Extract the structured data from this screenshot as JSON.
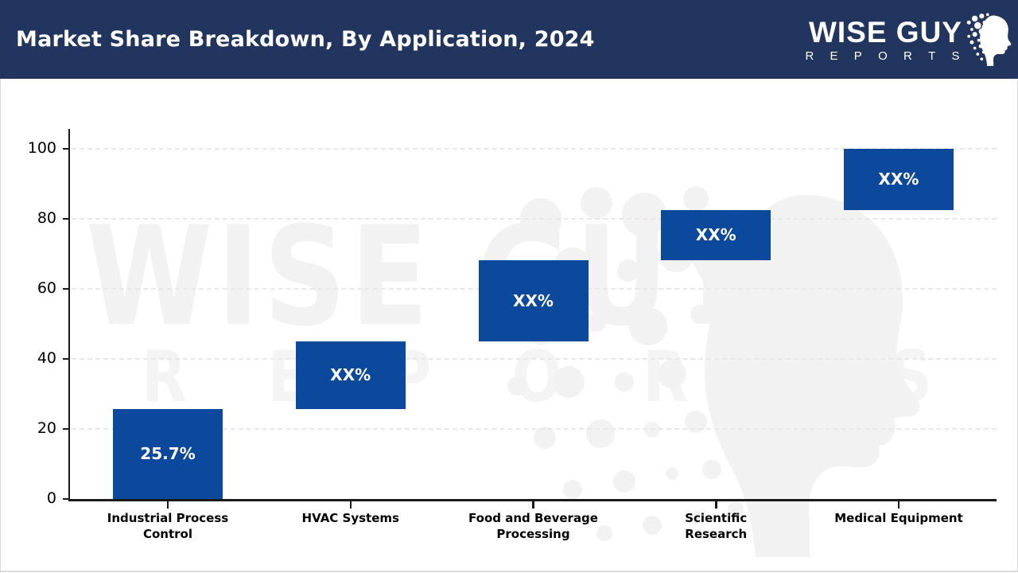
{
  "header": {
    "title": "Market Share Breakdown, By Application, 2024",
    "logo": {
      "line1": "WISE GUY",
      "line2": "REPORTS"
    }
  },
  "watermark": {
    "line1": "WISE GUY",
    "line2": "REPORTS"
  },
  "colors": {
    "header_bg": "#21355f",
    "bar_blue": "#0c499d",
    "axis": "#1a1a1a",
    "gridline": "#e8e8e8",
    "watermark": "#f2f2f2",
    "bar_label": "#ffffff"
  },
  "chart_data": {
    "type": "bar",
    "subtype": "waterfall",
    "title": "Market Share Breakdown, By Application, 2024",
    "xlabel": "",
    "ylabel": "",
    "ylim": [
      0,
      105
    ],
    "yticks": [
      0,
      20,
      40,
      60,
      80,
      100
    ],
    "grid": "dashed horizontal",
    "legend": "none",
    "bar_color": "#0c499d",
    "label_color": "#ffffff",
    "categories": [
      {
        "label": "Industrial Process Control",
        "lines": [
          "Industrial Process",
          "Control"
        ]
      },
      {
        "label": "HVAC Systems",
        "lines": [
          "HVAC Systems"
        ]
      },
      {
        "label": "Food and Beverage Processing",
        "lines": [
          "Food and Beverage",
          "Processing"
        ]
      },
      {
        "label": "Scientific Research",
        "lines": [
          "Scientific",
          "Research"
        ]
      },
      {
        "label": "Medical Equipment",
        "lines": [
          "Medical Equipment"
        ]
      }
    ],
    "segments": [
      {
        "start": 0,
        "end": 25.7,
        "label": "25.7%"
      },
      {
        "start": 25.7,
        "end": 45.0,
        "label": "XX%"
      },
      {
        "start": 45.0,
        "end": 68.2,
        "label": "XX%"
      },
      {
        "start": 68.2,
        "end": 82.6,
        "label": "XX%"
      },
      {
        "start": 82.6,
        "end": 100,
        "label": "XX%"
      }
    ]
  }
}
